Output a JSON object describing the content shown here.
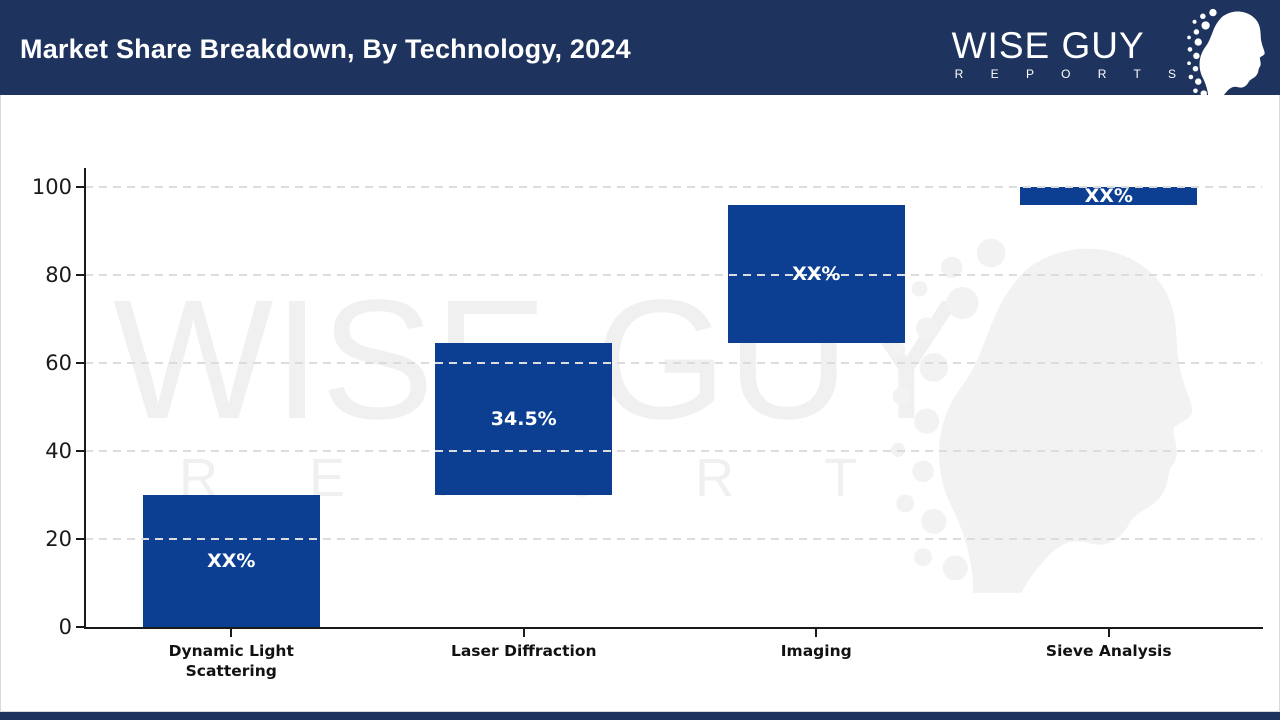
{
  "header": {
    "title": "Market Share Breakdown, By Technology, 2024",
    "bg_color": "#1e345e",
    "logo": {
      "line1": "WISE GUY",
      "line2": "R E P O R T S"
    }
  },
  "watermark": {
    "line1": "WISE GUY",
    "line2": "R E P O R T S"
  },
  "footer": {
    "bg_color": "#1e345e"
  },
  "chart_data": {
    "type": "bar",
    "subtype": "floating-segment-column",
    "title": "Market Share Breakdown, By Technology, 2024",
    "categories": [
      "Dynamic Light Scattering",
      "Laser Diffraction",
      "Imaging",
      "Sieve Analysis"
    ],
    "bars": [
      {
        "category": "Dynamic Light Scattering",
        "from": 0,
        "to": 30,
        "label": "XX%"
      },
      {
        "category": "Laser Diffraction",
        "from": 30,
        "to": 64.5,
        "label": "34.5%"
      },
      {
        "category": "Imaging",
        "from": 64.5,
        "to": 96,
        "label": "XX%"
      },
      {
        "category": "Sieve Analysis",
        "from": 96,
        "to": 100,
        "label": "XX%"
      }
    ],
    "ylim": [
      0,
      100
    ],
    "yticks": [
      0,
      20,
      40,
      60,
      80,
      100
    ],
    "grid": true,
    "grid_style": "dashed",
    "legend": "none",
    "bar_color": "#0c3f92",
    "bar_label_color": "#ffffff",
    "axis_color": "#1a1a1a"
  }
}
